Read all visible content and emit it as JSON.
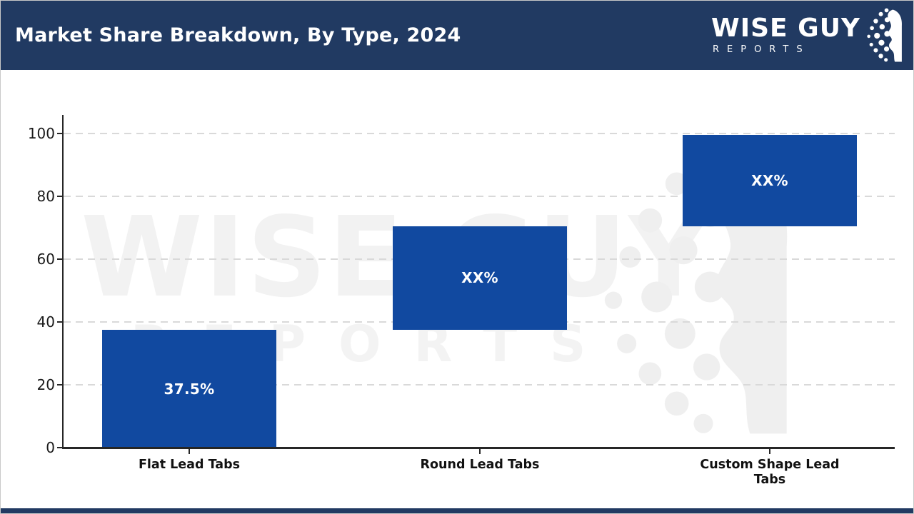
{
  "header": {
    "title": "Market Share Breakdown, By Type, 2024",
    "logo": {
      "wordmark": "WISE GUY",
      "subtitle": "REPORTS"
    }
  },
  "watermark": {
    "wordmark": "WISE GUY",
    "subtitle": "REPORTS"
  },
  "chart_data": {
    "type": "bar",
    "subtype": "floating-segment-bars (waterfall style)",
    "title": "Market Share Breakdown, By Type, 2024",
    "categories": [
      "Flat Lead Tabs",
      "Round Lead Tabs",
      "Custom Shape Lead Tabs"
    ],
    "series": [
      {
        "name": "Market share (%)",
        "segments": [
          {
            "from": 0,
            "to": 37.5
          },
          {
            "from": 37.5,
            "to": 70.5
          },
          {
            "from": 70.5,
            "to": 99.5
          }
        ]
      }
    ],
    "bar_labels": [
      "37.5%",
      "XX%",
      "XX%"
    ],
    "yticks": [
      0,
      20,
      40,
      60,
      80,
      100
    ],
    "ylim": [
      0,
      106
    ],
    "xlabel": "",
    "ylabel": "",
    "grid": "horizontal-dashed",
    "legend": "none",
    "bar_color": "#1149A0",
    "bar_label_color": "#ffffff"
  },
  "colors": {
    "header_bg": "#213A62",
    "footer_bg": "#213A62",
    "axis": "#262626",
    "gridline": "#d9d9d9",
    "watermark": "#f2f2f2"
  }
}
